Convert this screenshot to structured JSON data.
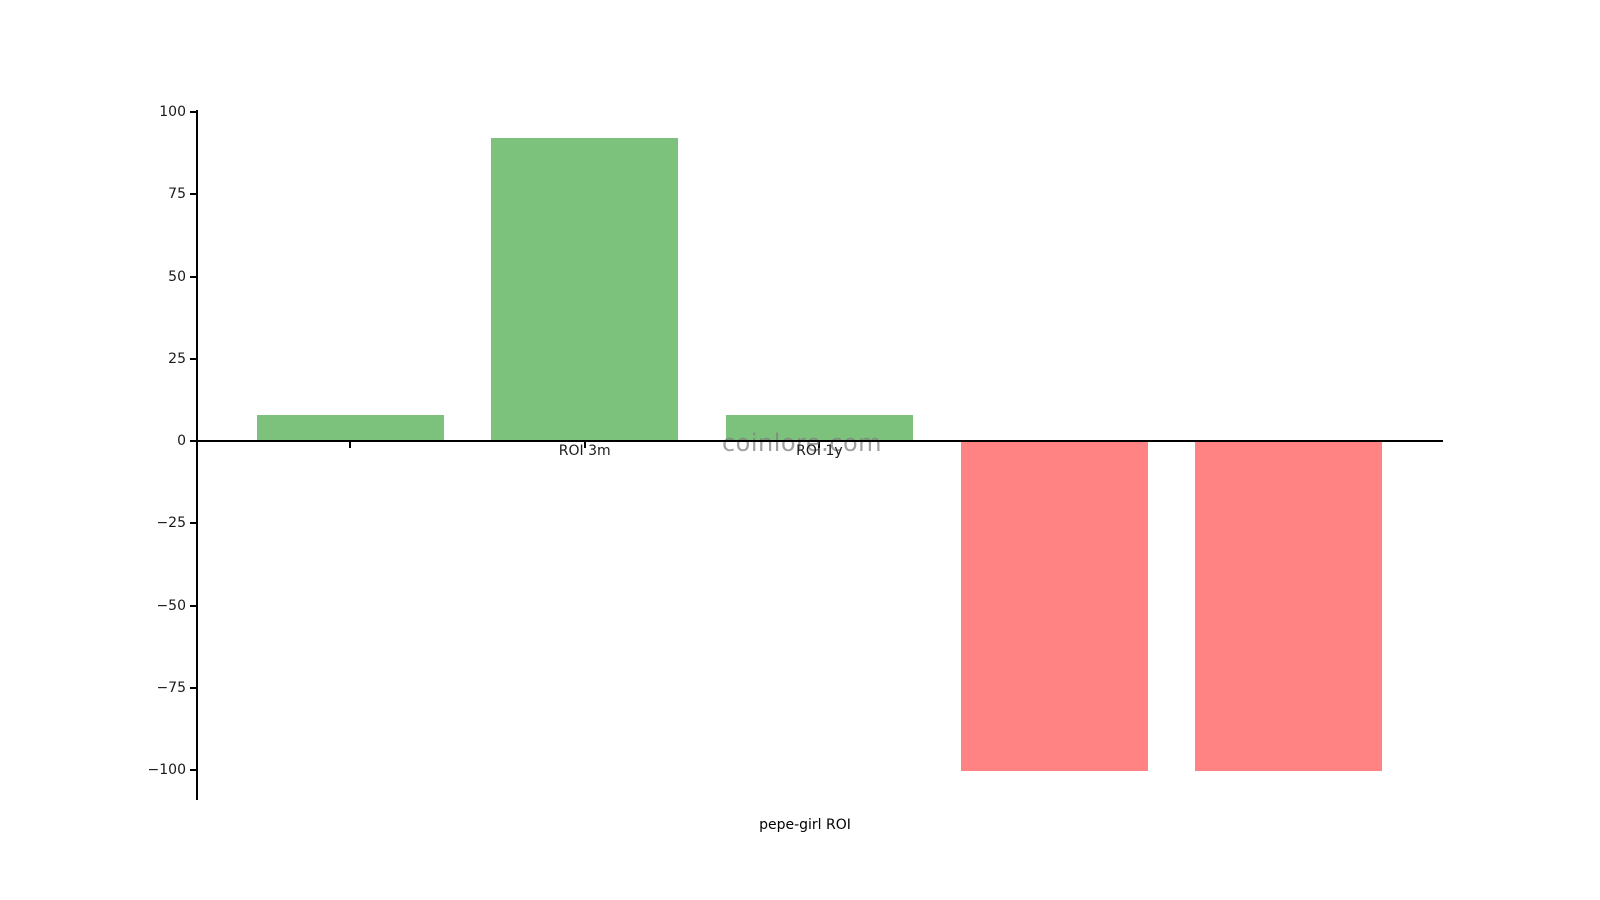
{
  "chart_data": {
    "type": "bar",
    "title": "pepe-girl ROI",
    "categories": [
      "",
      "ROI 3m",
      "ROI 1y",
      "",
      ""
    ],
    "values": [
      8,
      92,
      8,
      -100,
      -100
    ],
    "yticks": [
      100,
      75,
      50,
      25,
      0,
      -25,
      -50,
      -75,
      -100
    ],
    "ylim": [
      -109,
      101
    ],
    "xlabel": "",
    "ylabel": "",
    "grid": false,
    "legend": "none",
    "watermark": "coinlore.com",
    "colors": {
      "positive": "#7cc17c",
      "negative": "#ff8383",
      "axis": "#000000",
      "tick_label": "#1a1a1a",
      "watermark": "#808080"
    }
  }
}
